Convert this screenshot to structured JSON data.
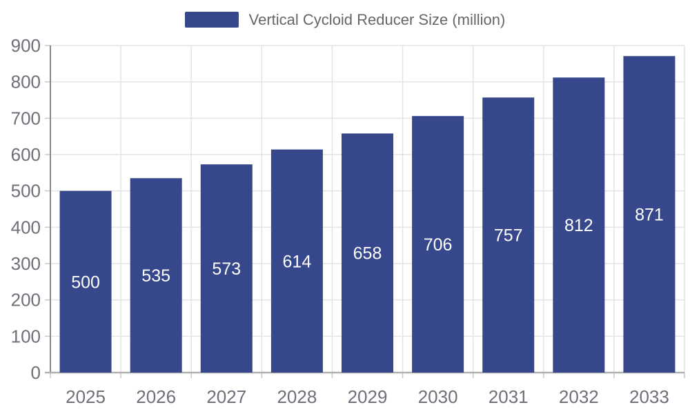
{
  "chart_data": {
    "type": "bar",
    "title": "Vertical Cycloid Reducer Size (million)",
    "series_name": "Vertical Cycloid Reducer Size (million)",
    "categories": [
      "2025",
      "2026",
      "2027",
      "2028",
      "2029",
      "2030",
      "2031",
      "2032",
      "2033"
    ],
    "values": [
      500,
      535,
      573,
      614,
      658,
      706,
      757,
      812,
      871
    ],
    "xlabel": "",
    "ylabel": "",
    "ylim": [
      0,
      900
    ],
    "ytick_step": 100,
    "ytick_labels": [
      "0",
      "100",
      "200",
      "300",
      "400",
      "500",
      "600",
      "700",
      "800",
      "900"
    ],
    "grid": true,
    "legend_position": "top-center",
    "colors": {
      "bar": "#36478B",
      "value_label": "#ffffff",
      "axis_label": "#6E7079",
      "title": "#666666",
      "grid_line": "#e4e4e4",
      "y_axis_line": "#878787",
      "x_axis_line": "#b0b0b0",
      "tick": "#c8c8c8",
      "background": "#ffffff"
    }
  }
}
